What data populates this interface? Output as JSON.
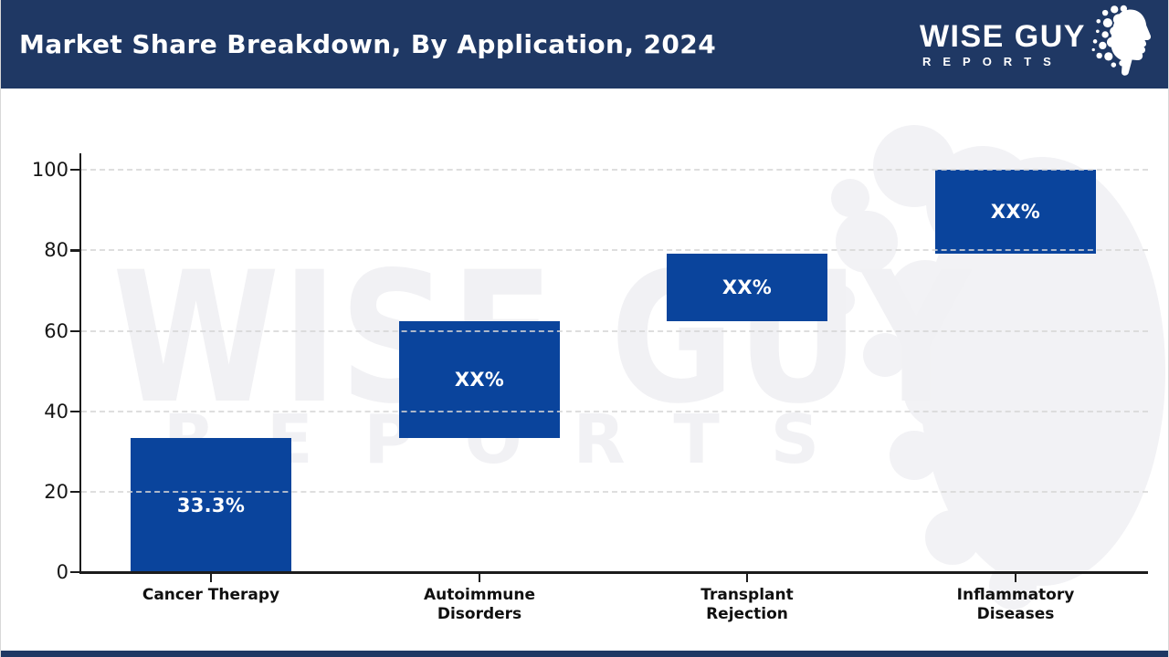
{
  "header": {
    "title": "Market Share Breakdown, By Application, 2024",
    "logo": {
      "line1": "WISE GUY",
      "line2": "REPORTS"
    }
  },
  "watermark": {
    "line1": "WISE GUY",
    "line2": "REPORTS"
  },
  "chart_data": {
    "type": "bar",
    "subtype": "waterfall-floating-bars",
    "title": "Market Share Breakdown, By Application, 2024",
    "categories": [
      "Cancer Therapy",
      "Autoimmune\nDisorders",
      "Transplant\nRejection",
      "Inflammatory\nDiseases"
    ],
    "segments": [
      {
        "category": "Cancer Therapy",
        "start": 0,
        "end": 33.3,
        "label": "33.3%"
      },
      {
        "category": "Autoimmune Disorders",
        "start": 33.3,
        "end": 62.4,
        "label": "XX%"
      },
      {
        "category": "Transplant Rejection",
        "start": 62.4,
        "end": 79.2,
        "label": "XX%"
      },
      {
        "category": "Inflammatory Diseases",
        "start": 79.2,
        "end": 100,
        "label": "XX%"
      }
    ],
    "xlabel": "",
    "ylabel": "",
    "ylim": [
      0,
      100
    ],
    "yticks": [
      0,
      20,
      40,
      60,
      80,
      100
    ],
    "grid": "horizontal dashed, drawn above bars",
    "legend": "none",
    "colors": {
      "bar": "#0a449c",
      "bar_label": "#ffffff",
      "header_bg": "#1f3864",
      "axis": "#1c1c1c",
      "grid": "#d6d6d6",
      "watermark": "#f1f1f4"
    }
  }
}
